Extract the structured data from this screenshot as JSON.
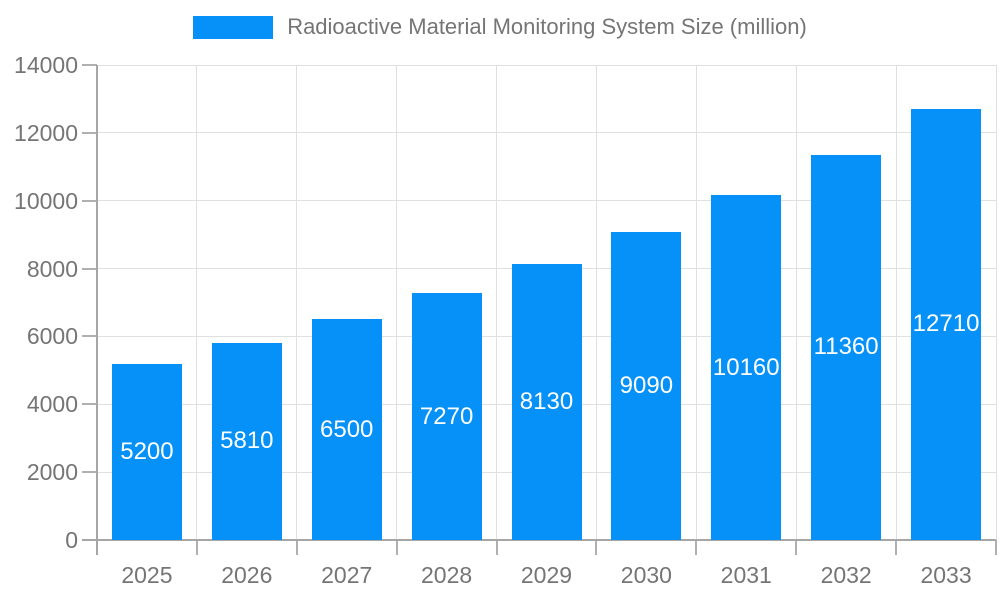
{
  "chart_data": {
    "type": "bar",
    "title": "Radioactive Material Monitoring System Size (million)",
    "legend_label": "Radioactive Material Monitoring System Size (million)",
    "legend_position": "top",
    "categories": [
      "2025",
      "2026",
      "2027",
      "2028",
      "2029",
      "2030",
      "2031",
      "2032",
      "2033"
    ],
    "values": [
      5200,
      5810,
      6500,
      7270,
      8130,
      9090,
      10160,
      11360,
      12710
    ],
    "value_labels": [
      "5200",
      "5810",
      "6500",
      "7270",
      "8130",
      "9090",
      "10160",
      "11360",
      "12710"
    ],
    "xlabel": "",
    "ylabel": "",
    "ylim": [
      0,
      14000
    ],
    "ytick_step": 2000,
    "ytick_labels": [
      "0",
      "2000",
      "4000",
      "6000",
      "8000",
      "10000",
      "12000",
      "14000"
    ],
    "grid": true,
    "colors": {
      "bar": "#0591f7",
      "bar_value_text": "#ffffff",
      "axis_text": "#757575",
      "gridline": "#e0e0e0",
      "axis_line": "#a6a6a6",
      "tick": "#b0b0b0",
      "background": "#ffffff"
    }
  }
}
